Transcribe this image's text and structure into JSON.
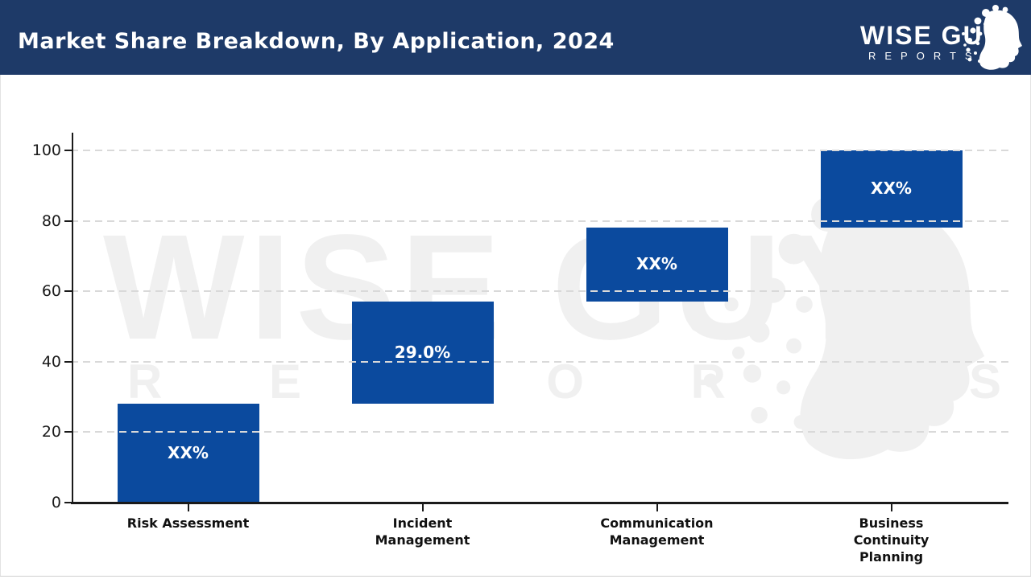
{
  "header": {
    "title": "Market Share Breakdown, By Application, 2024",
    "background_color": "#1e3a68",
    "logo": {
      "line1": "WISE GUY",
      "line2": "REPORTS",
      "face_icon": "dotted-head-profile-icon",
      "color": "#ffffff"
    }
  },
  "watermark": {
    "line1": "WISE GUY",
    "line2": "R E P O R T S",
    "face_icon": "dotted-head-profile-icon",
    "color": "#f0f0f0"
  },
  "chart_data": {
    "type": "bar",
    "subtype": "waterfall",
    "title": "Market Share Breakdown, By Application, 2024",
    "categories": [
      "Risk Assessment",
      "Incident Management",
      "Communication Management",
      "Business Continuity Planning"
    ],
    "segments": [
      {
        "category": "Risk Assessment",
        "label_lines": [
          "Risk Assessment"
        ],
        "start": 0,
        "end": 28,
        "value": 28,
        "value_label": "XX%"
      },
      {
        "category": "Incident Management",
        "label_lines": [
          "Incident",
          "Management"
        ],
        "start": 28,
        "end": 57,
        "value": 29,
        "value_label": "29.0%"
      },
      {
        "category": "Communication Management",
        "label_lines": [
          "Communication",
          "Management"
        ],
        "start": 57,
        "end": 78,
        "value": 21,
        "value_label": "XX%"
      },
      {
        "category": "Business Continuity Planning",
        "label_lines": [
          "Business",
          "Continuity",
          "Planning"
        ],
        "start": 78,
        "end": 100,
        "value": 22,
        "value_label": "XX%"
      }
    ],
    "y_ticks": [
      0,
      20,
      40,
      60,
      80,
      100
    ],
    "ylim": [
      0,
      105
    ],
    "xlabel": "",
    "ylabel": "",
    "grid": true,
    "grid_style": "dashed",
    "grid_color": "#d9d9d9",
    "bar_color": "#0b4a9e",
    "axis_color": "#1a1a1a",
    "value_label_color": "#ffffff",
    "legend": false
  }
}
